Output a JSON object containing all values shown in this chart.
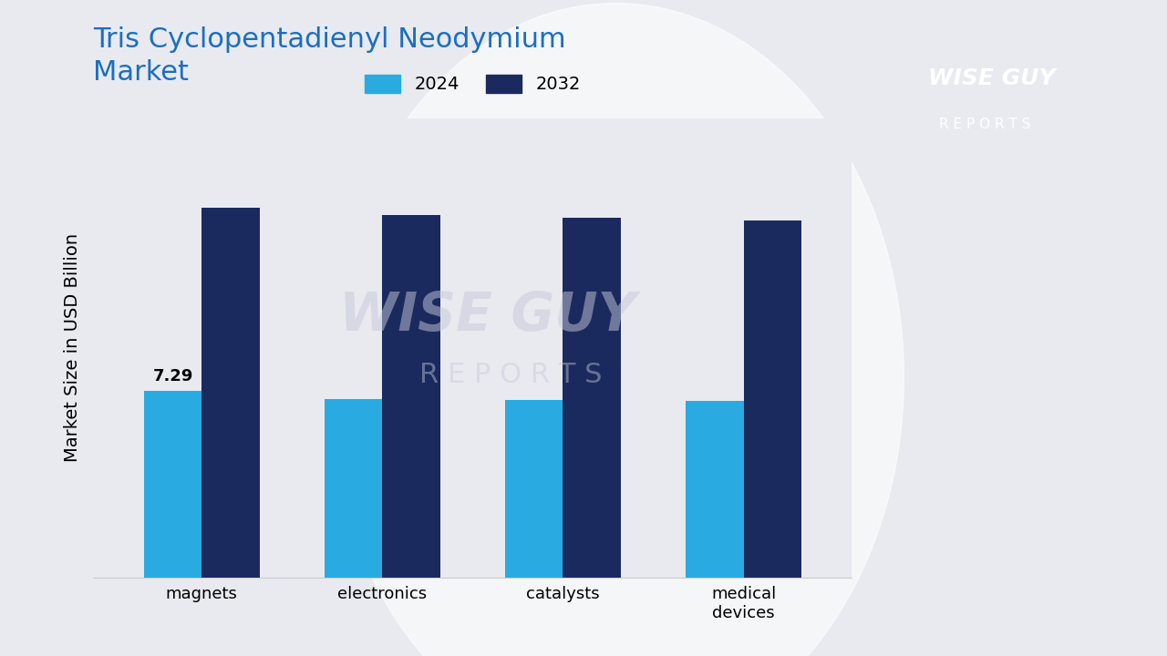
{
  "title": "Tris Cyclopentadienyl Neodymium\nMarket",
  "ylabel": "Market Size in USD Billion",
  "categories": [
    "magnets",
    "electronics",
    "catalysts",
    "medical\ndevices"
  ],
  "values_2024": [
    7.29,
    7.0,
    6.95,
    6.9
  ],
  "values_2032": [
    14.5,
    14.2,
    14.1,
    14.0
  ],
  "color_2024": "#29ABE2",
  "color_2032": "#1B2A5E",
  "bg_color": "#E8EAF0",
  "right_panel_color": "#1B2A5E",
  "title_color": "#1B6EC2",
  "annotation_value": "7.29",
  "bar_width": 0.32,
  "legend_labels": [
    "2024",
    "2032"
  ],
  "ylim": [
    0,
    18
  ],
  "title_fontsize": 22,
  "axis_label_fontsize": 14,
  "tick_fontsize": 13,
  "legend_fontsize": 14
}
